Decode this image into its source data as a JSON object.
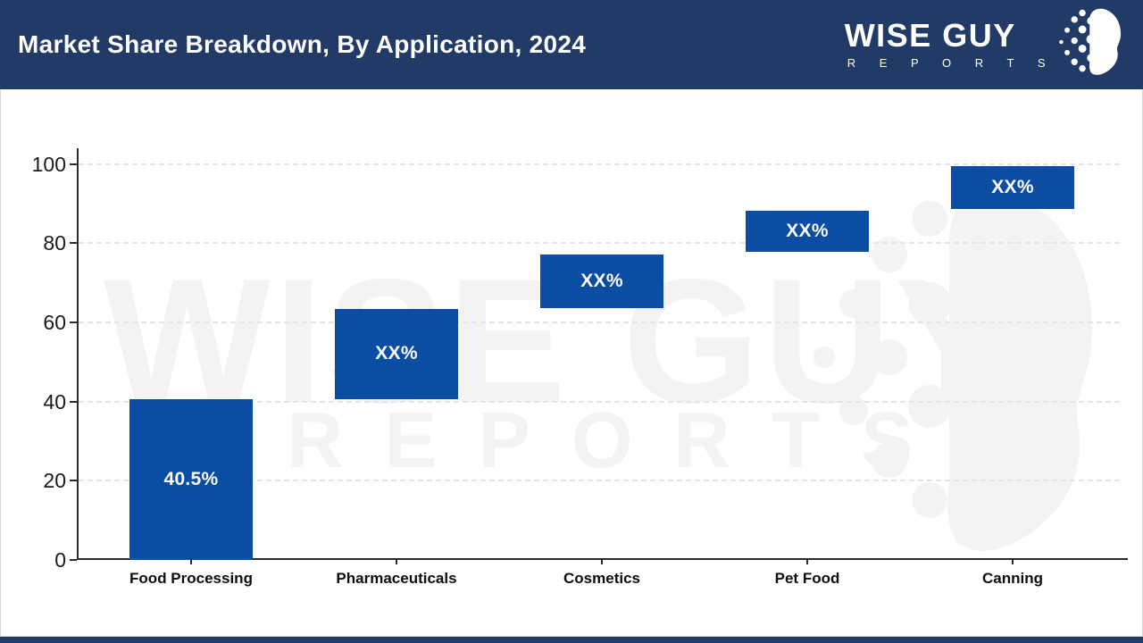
{
  "header": {
    "title": "Market Share Breakdown, By Application, 2024"
  },
  "logo": {
    "line1": "WISE GUY",
    "line2": "R E P O R T S"
  },
  "watermark": {
    "line1": "WISE GUY",
    "line2": "REPORTS"
  },
  "colors": {
    "header_bg": "#213a66",
    "footer_bg": "#213a66",
    "bar": "#0b4da2",
    "bar_label_text": "#ffffff",
    "grid": "#e4e4e4",
    "axis": "#2b2b2b",
    "watermark": "#f3f3f3"
  },
  "chart_data": {
    "type": "bar",
    "subtype": "waterfall",
    "title": "Market Share Breakdown, By Application, 2024",
    "xlabel": "",
    "ylabel": "",
    "grid": "horizontal-dashed",
    "legend": "none",
    "ylim": [
      0,
      104
    ],
    "yticks": [
      0,
      20,
      40,
      60,
      80,
      100
    ],
    "categories": [
      "Food Processing",
      "Pharmaceuticals",
      "Cosmetics",
      "Pet Food",
      "Canning"
    ],
    "segments": [
      {
        "category": "Food Processing",
        "start": 0,
        "end": 40.5,
        "label": "40.5%"
      },
      {
        "category": "Pharmaceuticals",
        "start": 40.7,
        "end": 63.5,
        "label": "XX%"
      },
      {
        "category": "Cosmetics",
        "start": 63.7,
        "end": 77.2,
        "label": "XX%"
      },
      {
        "category": "Pet Food",
        "start": 77.9,
        "end": 88.3,
        "label": "XX%"
      },
      {
        "category": "Canning",
        "start": 88.6,
        "end": 99.6,
        "label": "XX%"
      }
    ]
  }
}
